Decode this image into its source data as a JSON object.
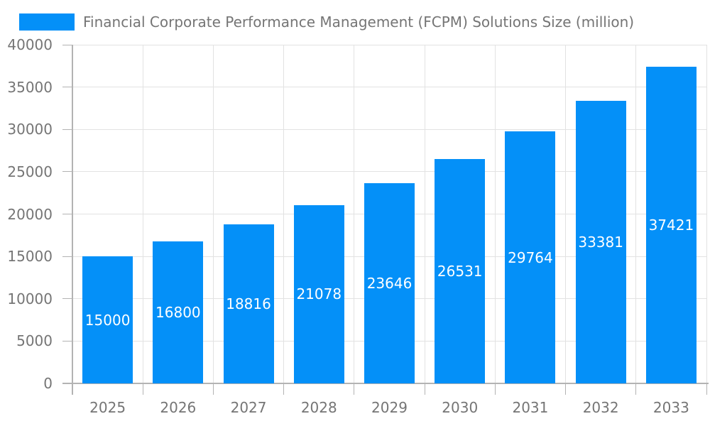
{
  "legend": {
    "label": "Financial Corporate Performance Management (FCPM) Solutions Size (million)",
    "swatch_color": "#0490F8"
  },
  "chart_data": {
    "type": "bar",
    "title": "Financial Corporate Performance Management (FCPM) Solutions Size (million)",
    "categories": [
      "2025",
      "2026",
      "2027",
      "2028",
      "2029",
      "2030",
      "2031",
      "2032",
      "2033"
    ],
    "values": [
      15000,
      16800,
      18816,
      21078,
      23646,
      26531,
      29764,
      33381,
      37421
    ],
    "xlabel": "",
    "ylabel": "",
    "ylim": [
      0,
      40000
    ],
    "ytick_step": 5000,
    "ytick_labels": [
      "0",
      "5000",
      "10000",
      "15000",
      "20000",
      "25000",
      "30000",
      "35000",
      "40000"
    ],
    "grid": true,
    "legend_position": "top-left",
    "value_labels_inside_bars": true,
    "colors": {
      "bar": "#0490F8",
      "value_label": "#ffffff",
      "axis_text": "#757575",
      "gridline": "#e2e2e2",
      "axis_line": "#b3b3b3"
    }
  }
}
